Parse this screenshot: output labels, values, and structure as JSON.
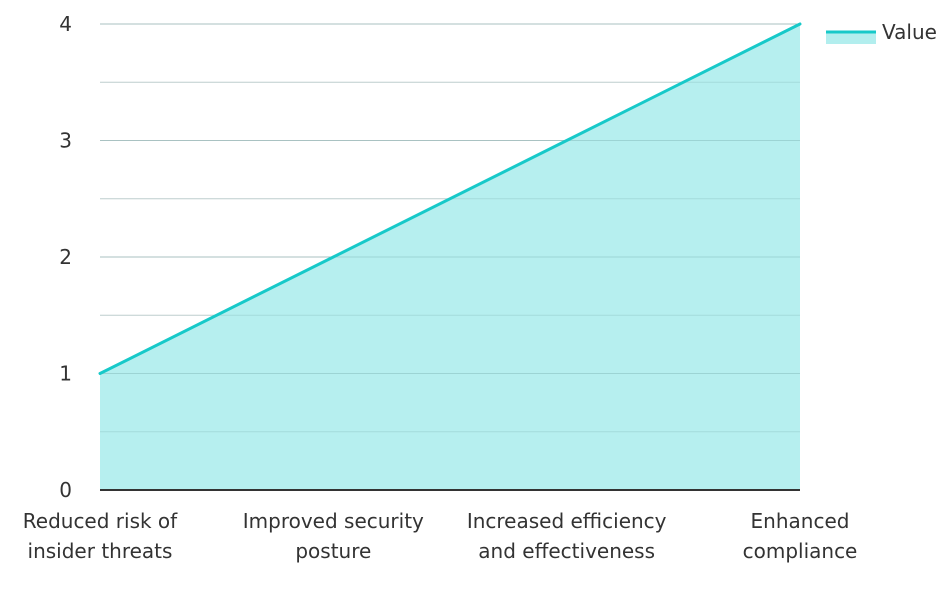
{
  "chart_data": {
    "type": "area",
    "categories": [
      "Reduced risk of insider threats",
      "Improved security posture",
      "Increased efficiency and effectiveness",
      "Enhanced compliance"
    ],
    "series": [
      {
        "name": "Value",
        "values": [
          1,
          2,
          3,
          4
        ]
      }
    ],
    "ylim": [
      0,
      4
    ],
    "y_ticks": [
      0,
      1,
      2,
      3,
      4
    ],
    "title": "",
    "xlabel": "",
    "ylabel": "",
    "grid": true,
    "legend_position": "top-right",
    "colors": {
      "line": "#17C9C9",
      "fill": "#B2EEEE",
      "grid": "#CCCCCC",
      "axis": "#333333",
      "text": "#333333"
    }
  }
}
